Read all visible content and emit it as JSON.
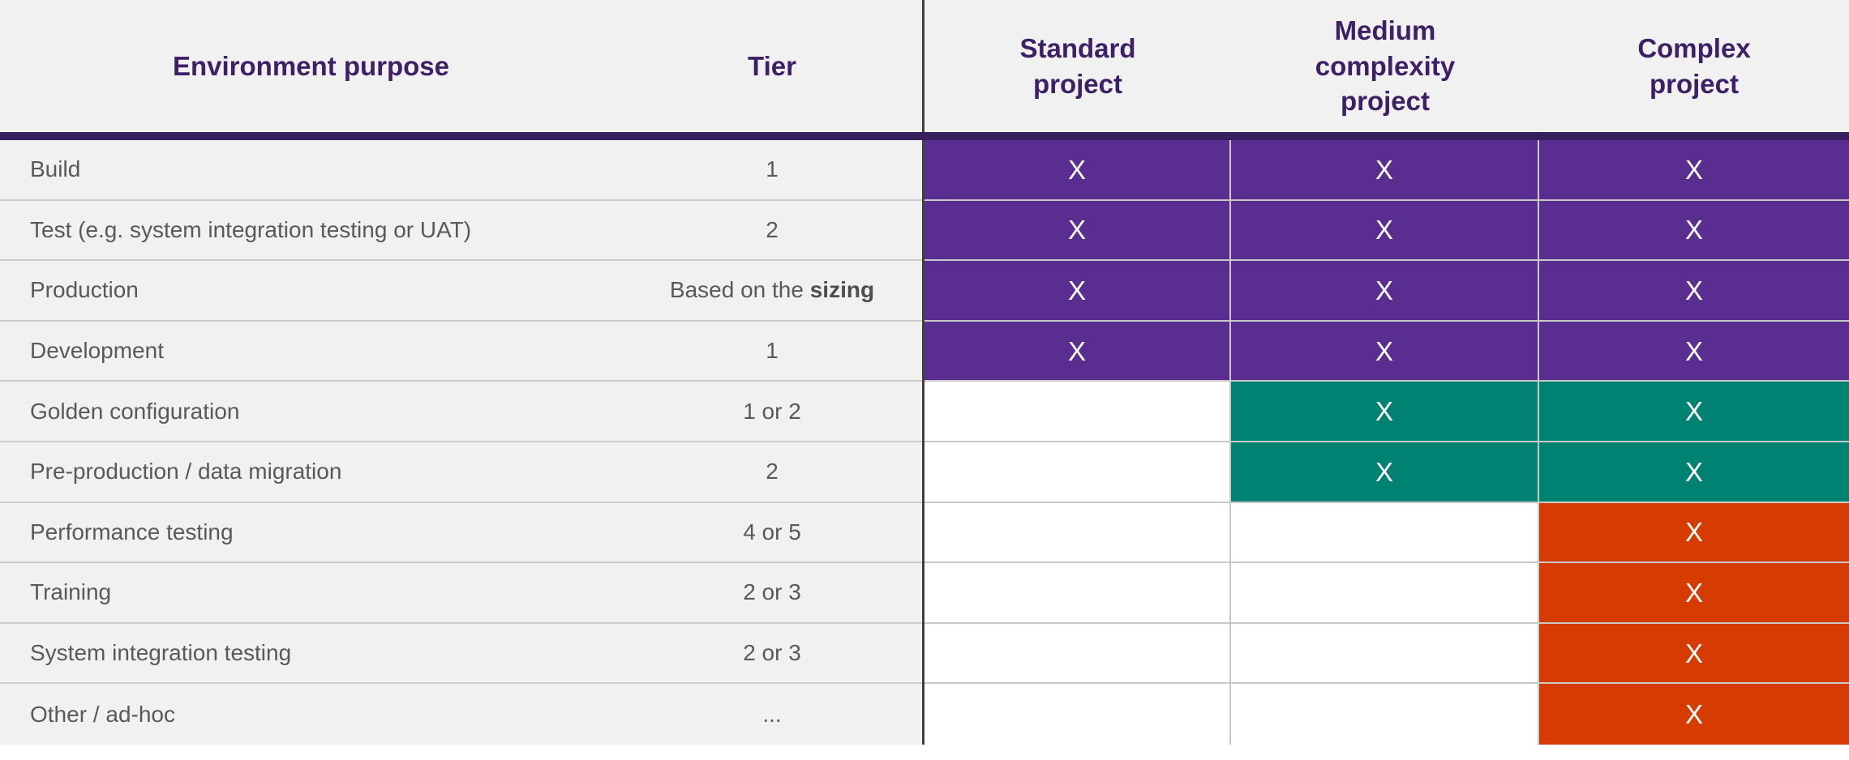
{
  "colors": {
    "purple": "#5a2d90",
    "teal": "#008272",
    "orange": "#d63c02",
    "header_text": "#3d2066",
    "header_underline": "#371f5d",
    "row_bg": "#f1f1f2",
    "row_text": "#595959",
    "divider": "#3f3f3f",
    "grid_line": "#c9c9c9",
    "left_separator": "#cccccc"
  },
  "table": {
    "headers": {
      "environment_purpose": "Environment purpose",
      "tier": "Tier",
      "projects": [
        {
          "label": "Standard\nproject"
        },
        {
          "label": "Medium\ncomplexity\nproject"
        },
        {
          "label": "Complex\nproject"
        }
      ]
    },
    "mark": "X",
    "rows": [
      {
        "purpose": "Build",
        "tier": "1",
        "cells": [
          "purple",
          "purple",
          "purple"
        ]
      },
      {
        "purpose": "Test (e.g. system integration testing or UAT)",
        "tier": "2",
        "cells": [
          "purple",
          "purple",
          "purple"
        ]
      },
      {
        "purpose": "Production",
        "tier": "Based on the ",
        "tier_bold": "sizing",
        "cells": [
          "purple",
          "purple",
          "purple"
        ]
      },
      {
        "purpose": "Development",
        "tier": "1",
        "cells": [
          "purple",
          "purple",
          "purple"
        ]
      },
      {
        "purpose": "Golden configuration",
        "tier": "1 or 2",
        "cells": [
          null,
          "teal",
          "teal"
        ]
      },
      {
        "purpose": "Pre-production / data migration",
        "tier": "2",
        "cells": [
          null,
          "teal",
          "teal"
        ]
      },
      {
        "purpose": "Performance testing",
        "tier": "4 or 5",
        "cells": [
          null,
          null,
          "orange"
        ]
      },
      {
        "purpose": "Training",
        "tier": "2 or 3",
        "cells": [
          null,
          null,
          "orange"
        ]
      },
      {
        "purpose": "System integration testing",
        "tier": "2 or 3",
        "cells": [
          null,
          null,
          "orange"
        ]
      },
      {
        "purpose": "Other / ad-hoc",
        "tier": "...",
        "cells": [
          null,
          null,
          "orange"
        ]
      }
    ]
  }
}
